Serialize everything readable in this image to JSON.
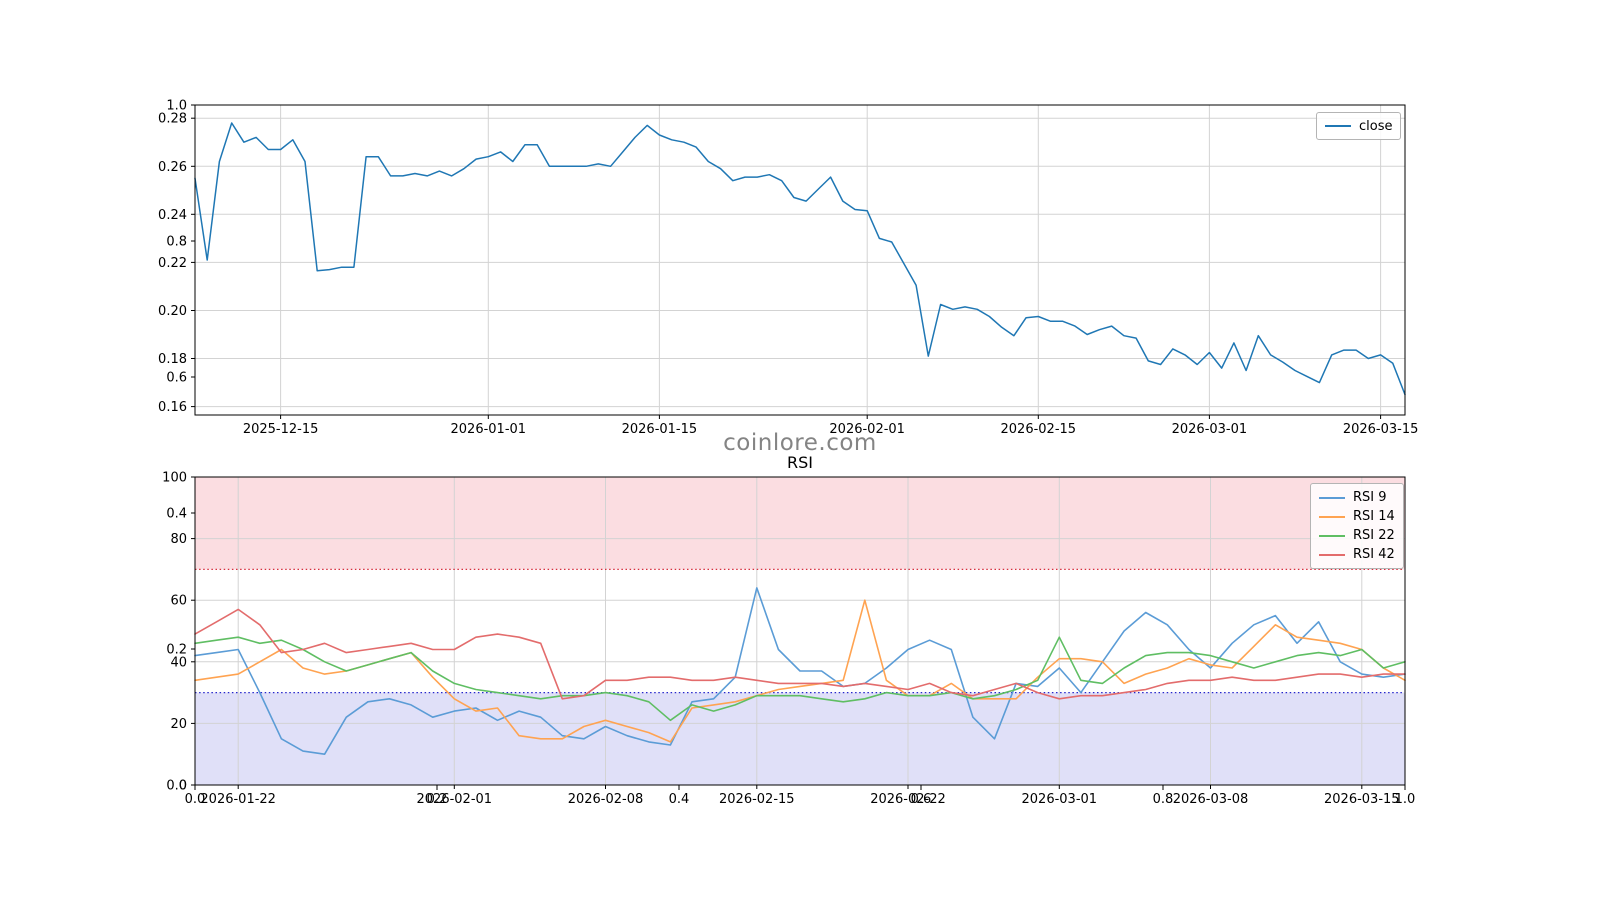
{
  "watermark": {
    "text": "coinlore.com"
  },
  "colors": {
    "grid": "#d3d3d3",
    "spine": "#000000",
    "background": "#ffffff",
    "watermark": "#848484"
  },
  "overlay_axis": {
    "yticks": [
      "1.0",
      "0.8",
      "0.6",
      "0.4",
      "0.2",
      "0.0"
    ],
    "xticks": [
      "0.0",
      "0.2",
      "0.4",
      "0.6",
      "0.8",
      "1.0"
    ]
  },
  "chart_data": [
    {
      "type": "line",
      "name": "price",
      "title": "",
      "x_range": [
        "2025-12-08",
        "2026-03-17"
      ],
      "x_freq": "daily",
      "x_count": 100,
      "ylim": [
        0.1565,
        0.2855
      ],
      "grid": true,
      "yticks": [
        {
          "label": "0.16",
          "value": 0.16
        },
        {
          "label": "0.18",
          "value": 0.18
        },
        {
          "label": "0.20",
          "value": 0.2
        },
        {
          "label": "0.22",
          "value": 0.22
        },
        {
          "label": "0.24",
          "value": 0.24
        },
        {
          "label": "0.26",
          "value": 0.26
        },
        {
          "label": "0.28",
          "value": 0.28
        }
      ],
      "xticks": [
        {
          "label": "2025-12-15",
          "index": 7
        },
        {
          "label": "2026-01-01",
          "index": 24
        },
        {
          "label": "2026-01-15",
          "index": 38
        },
        {
          "label": "2026-02-01",
          "index": 55
        },
        {
          "label": "2026-02-15",
          "index": 69
        },
        {
          "label": "2026-03-01",
          "index": 83
        },
        {
          "label": "2026-03-15",
          "index": 97
        }
      ],
      "legend": {
        "position": "upper right",
        "items": [
          {
            "label": "close",
            "color": "#1f77b4"
          }
        ]
      },
      "series": [
        {
          "name": "close",
          "color": "#1f77b4",
          "values": [
            0.255,
            0.221,
            0.262,
            0.278,
            0.27,
            0.272,
            0.267,
            0.267,
            0.271,
            0.262,
            0.2165,
            0.217,
            0.218,
            0.218,
            0.264,
            0.264,
            0.256,
            0.256,
            0.257,
            0.256,
            0.258,
            0.256,
            0.259,
            0.263,
            0.264,
            0.266,
            0.262,
            0.269,
            0.269,
            0.26,
            0.26,
            0.26,
            0.26,
            0.261,
            0.26,
            0.266,
            0.272,
            0.277,
            0.273,
            0.271,
            0.27,
            0.268,
            0.262,
            0.259,
            0.254,
            0.2555,
            0.2555,
            0.2565,
            0.254,
            0.247,
            0.2455,
            0.2505,
            0.2555,
            0.2455,
            0.242,
            0.2415,
            0.23,
            0.2285,
            0.2195,
            0.2105,
            0.181,
            0.2025,
            0.2005,
            0.2015,
            0.2005,
            0.1975,
            0.193,
            0.1895,
            0.197,
            0.1975,
            0.1955,
            0.1955,
            0.1935,
            0.19,
            0.192,
            0.1935,
            0.1895,
            0.1885,
            0.179,
            0.1775,
            0.184,
            0.1815,
            0.1775,
            0.1825,
            0.176,
            0.1865,
            0.175,
            0.1895,
            0.1815,
            0.1785,
            0.175,
            0.1725,
            0.17,
            0.1815,
            0.1835,
            0.1835,
            0.18,
            0.1815,
            0.178,
            0.165
          ]
        }
      ]
    },
    {
      "type": "line",
      "name": "rsi",
      "title": "RSI",
      "x_range": [
        "2026-01-20",
        "2026-03-17"
      ],
      "x_freq": "daily",
      "x_count": 57,
      "ylim": [
        0,
        100
      ],
      "grid": true,
      "yticks": [
        {
          "label": "0",
          "value": 0
        },
        {
          "label": "20",
          "value": 20
        },
        {
          "label": "40",
          "value": 40
        },
        {
          "label": "60",
          "value": 60
        },
        {
          "label": "80",
          "value": 80
        },
        {
          "label": "100",
          "value": 100
        }
      ],
      "xticks": [
        {
          "label": "2026-01-22",
          "index": 2
        },
        {
          "label": "2026-02-01",
          "index": 12
        },
        {
          "label": "2026-02-08",
          "index": 19
        },
        {
          "label": "2026-02-15",
          "index": 26
        },
        {
          "label": "2026-02-22",
          "index": 33
        },
        {
          "label": "2026-03-01",
          "index": 40
        },
        {
          "label": "2026-03-08",
          "index": 47
        },
        {
          "label": "2026-03-15",
          "index": 54
        }
      ],
      "bands": [
        {
          "name": "overbought",
          "from": 70,
          "to": 100,
          "fill": "#fbdde1"
        },
        {
          "name": "oversold",
          "from": 0,
          "to": 30,
          "fill": "#e0e0f8"
        }
      ],
      "hlines": [
        {
          "name": "overbought-threshold",
          "value": 70,
          "color": "#d62e3e"
        },
        {
          "name": "oversold-threshold",
          "value": 30,
          "color": "#2626cc"
        }
      ],
      "legend": {
        "position": "upper right",
        "items": [
          {
            "label": "RSI 9",
            "color": "#5b9cd6"
          },
          {
            "label": "RSI 14",
            "color": "#ffa351"
          },
          {
            "label": "RSI 22",
            "color": "#5fbe63"
          },
          {
            "label": "RSI 42",
            "color": "#e36c6c"
          }
        ]
      },
      "series": [
        {
          "name": "RSI 9",
          "color": "#5b9cd6",
          "values": [
            42,
            43,
            44,
            30,
            15,
            11,
            10,
            22,
            27,
            28,
            26,
            22,
            24,
            25,
            21,
            24,
            22,
            16,
            15,
            19,
            16,
            14,
            13,
            27,
            28,
            35,
            64,
            44,
            37,
            37,
            32,
            33,
            38,
            44,
            47,
            44,
            22,
            15,
            33,
            32,
            38,
            30,
            40,
            50,
            56,
            52,
            44,
            38,
            46,
            52,
            55,
            46,
            53,
            40,
            36,
            35,
            36
          ]
        },
        {
          "name": "RSI 14",
          "color": "#ffa351",
          "values": [
            34,
            35,
            36,
            40,
            44,
            38,
            36,
            37,
            39,
            41,
            43,
            35,
            28,
            24,
            25,
            16,
            15,
            15,
            19,
            21,
            19,
            17,
            14,
            25,
            26,
            27,
            29,
            31,
            32,
            33,
            34,
            60,
            34,
            29,
            29,
            33,
            28,
            28,
            28,
            35,
            41,
            41,
            40,
            33,
            36,
            38,
            41,
            39,
            38,
            45,
            52,
            48,
            47,
            46,
            44,
            38,
            34
          ]
        },
        {
          "name": "RSI 22",
          "color": "#5fbe63",
          "values": [
            46,
            47,
            48,
            46,
            47,
            44,
            40,
            37,
            39,
            41,
            43,
            37,
            33,
            31,
            30,
            29,
            28,
            29,
            29,
            30,
            29,
            27,
            21,
            26,
            24,
            26,
            29,
            29,
            29,
            28,
            27,
            28,
            30,
            29,
            29,
            30,
            28,
            29,
            31,
            34,
            48,
            34,
            33,
            38,
            42,
            43,
            43,
            42,
            40,
            38,
            40,
            42,
            43,
            42,
            44,
            38,
            40
          ]
        },
        {
          "name": "RSI 42",
          "color": "#e36c6c",
          "values": [
            49,
            53,
            57,
            52,
            43,
            44,
            46,
            43,
            44,
            45,
            46,
            44,
            44,
            48,
            49,
            48,
            46,
            28,
            29,
            34,
            34,
            35,
            35,
            34,
            34,
            35,
            34,
            33,
            33,
            33,
            32,
            33,
            32,
            31,
            33,
            30,
            29,
            31,
            33,
            30,
            28,
            29,
            29,
            30,
            31,
            33,
            34,
            34,
            35,
            34,
            34,
            35,
            36,
            36,
            35,
            36,
            36
          ]
        }
      ]
    }
  ]
}
